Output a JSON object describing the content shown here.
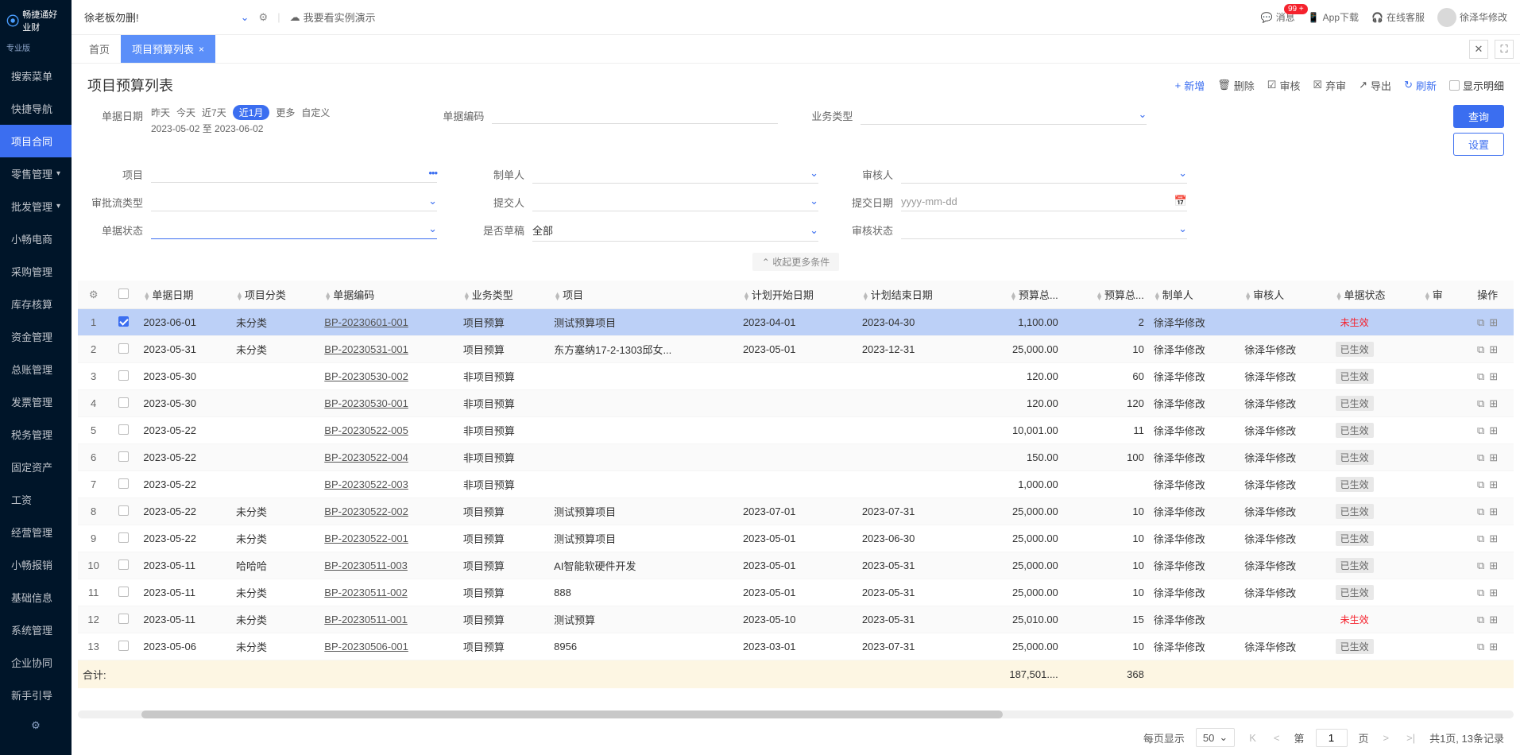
{
  "brand": {
    "name": "畅捷通好业财",
    "edition": "专业版"
  },
  "topbar": {
    "org": "徐老板勿删!",
    "demo_link": "我要看实例演示",
    "message": "消息",
    "message_badge": "99 +",
    "app_download": "App下载",
    "online_service": "在线客服",
    "user": "徐泽华修改"
  },
  "sidebar": [
    {
      "label": "搜索菜单",
      "active": false
    },
    {
      "label": "快捷导航",
      "active": false
    },
    {
      "label": "项目合同",
      "active": true
    },
    {
      "label": "零售管理",
      "active": false,
      "sub": true
    },
    {
      "label": "批发管理",
      "active": false,
      "sub": true
    },
    {
      "label": "小畅电商",
      "active": false
    },
    {
      "label": "采购管理",
      "active": false
    },
    {
      "label": "库存核算",
      "active": false
    },
    {
      "label": "资金管理",
      "active": false
    },
    {
      "label": "总账管理",
      "active": false
    },
    {
      "label": "发票管理",
      "active": false
    },
    {
      "label": "税务管理",
      "active": false
    },
    {
      "label": "固定资产",
      "active": false
    },
    {
      "label": "工资",
      "active": false
    },
    {
      "label": "经营管理",
      "active": false
    },
    {
      "label": "小畅报销",
      "active": false
    },
    {
      "label": "基础信息",
      "active": false
    },
    {
      "label": "系统管理",
      "active": false
    },
    {
      "label": "企业协同",
      "active": false
    },
    {
      "label": "新手引导",
      "active": false
    }
  ],
  "tabs": [
    {
      "label": "首页",
      "active": false
    },
    {
      "label": "项目预算列表",
      "active": true
    }
  ],
  "page": {
    "title": "项目预算列表",
    "actions": {
      "add": "新增",
      "delete": "删除",
      "audit": "审核",
      "abandon": "弃审",
      "export": "导出",
      "refresh": "刷新",
      "detail_check": "显示明细"
    }
  },
  "filter": {
    "labels": {
      "bill_date": "单据日期",
      "bill_code": "单据编码",
      "biz_type": "业务类型",
      "project": "项目",
      "maker": "制单人",
      "auditor": "审核人",
      "flow_type": "审批流类型",
      "submitter": "提交人",
      "submit_date": "提交日期",
      "bill_status": "单据状态",
      "is_draft": "是否草稿",
      "audit_status": "审核状态"
    },
    "date_quick": {
      "yesterday": "昨天",
      "today": "今天",
      "d7": "近7天",
      "m1": "近1月",
      "more": "更多",
      "custom": "自定义"
    },
    "date_range": "2023-05-02 至 2023-06-02",
    "is_draft_value": "全部",
    "submit_date_placeholder": "yyyy-mm-dd",
    "query": "查询",
    "settings": "设置",
    "collapse": "收起更多条件"
  },
  "table": {
    "columns": {
      "bill_date": "单据日期",
      "category": "项目分类",
      "bill_code": "单据编码",
      "biz_type": "业务类型",
      "project": "项目",
      "plan_start": "计划开始日期",
      "plan_end": "计划结束日期",
      "budget_total1": "预算总...",
      "budget_total2": "预算总...",
      "maker": "制单人",
      "auditor": "审核人",
      "status": "单据状态",
      "extra": "审",
      "operate": "操作"
    },
    "rows": [
      {
        "n": 1,
        "sel": true,
        "date": "2023-06-01",
        "cat": "未分类",
        "code": "BP-20230601-001",
        "type": "项目预算",
        "proj": "测试预算项目",
        "start": "2023-04-01",
        "end": "2023-04-30",
        "b1": "1,100.00",
        "b2": "2",
        "maker": "徐泽华修改",
        "aud": "",
        "status": "未生效",
        "sok": false
      },
      {
        "n": 2,
        "date": "2023-05-31",
        "cat": "未分类",
        "code": "BP-20230531-001",
        "type": "项目预算",
        "proj": "东方塞纳17-2-1303邱女...",
        "start": "2023-05-01",
        "end": "2023-12-31",
        "b1": "25,000.00",
        "b2": "10",
        "maker": "徐泽华修改",
        "aud": "徐泽华修改",
        "status": "已生效",
        "sok": true
      },
      {
        "n": 3,
        "date": "2023-05-30",
        "cat": "",
        "code": "BP-20230530-002",
        "type": "非项目预算",
        "proj": "",
        "start": "",
        "end": "",
        "b1": "120.00",
        "b2": "60",
        "maker": "徐泽华修改",
        "aud": "徐泽华修改",
        "status": "已生效",
        "sok": true
      },
      {
        "n": 4,
        "date": "2023-05-30",
        "cat": "",
        "code": "BP-20230530-001",
        "type": "非项目预算",
        "proj": "",
        "start": "",
        "end": "",
        "b1": "120.00",
        "b2": "120",
        "maker": "徐泽华修改",
        "aud": "徐泽华修改",
        "status": "已生效",
        "sok": true
      },
      {
        "n": 5,
        "date": "2023-05-22",
        "cat": "",
        "code": "BP-20230522-005",
        "type": "非项目预算",
        "proj": "",
        "start": "",
        "end": "",
        "b1": "10,001.00",
        "b2": "11",
        "maker": "徐泽华修改",
        "aud": "徐泽华修改",
        "status": "已生效",
        "sok": true
      },
      {
        "n": 6,
        "date": "2023-05-22",
        "cat": "",
        "code": "BP-20230522-004",
        "type": "非项目预算",
        "proj": "",
        "start": "",
        "end": "",
        "b1": "150.00",
        "b2": "100",
        "maker": "徐泽华修改",
        "aud": "徐泽华修改",
        "status": "已生效",
        "sok": true
      },
      {
        "n": 7,
        "date": "2023-05-22",
        "cat": "",
        "code": "BP-20230522-003",
        "type": "非项目预算",
        "proj": "",
        "start": "",
        "end": "",
        "b1": "1,000.00",
        "b2": "",
        "maker": "徐泽华修改",
        "aud": "徐泽华修改",
        "status": "已生效",
        "sok": true
      },
      {
        "n": 8,
        "date": "2023-05-22",
        "cat": "未分类",
        "code": "BP-20230522-002",
        "type": "项目预算",
        "proj": "测试预算项目",
        "start": "2023-07-01",
        "end": "2023-07-31",
        "b1": "25,000.00",
        "b2": "10",
        "maker": "徐泽华修改",
        "aud": "徐泽华修改",
        "status": "已生效",
        "sok": true
      },
      {
        "n": 9,
        "date": "2023-05-22",
        "cat": "未分类",
        "code": "BP-20230522-001",
        "type": "项目预算",
        "proj": "测试预算项目",
        "start": "2023-05-01",
        "end": "2023-06-30",
        "b1": "25,000.00",
        "b2": "10",
        "maker": "徐泽华修改",
        "aud": "徐泽华修改",
        "status": "已生效",
        "sok": true
      },
      {
        "n": 10,
        "date": "2023-05-11",
        "cat": "哈哈哈",
        "code": "BP-20230511-003",
        "type": "项目预算",
        "proj": "AI智能软硬件开发",
        "start": "2023-05-01",
        "end": "2023-05-31",
        "b1": "25,000.00",
        "b2": "10",
        "maker": "徐泽华修改",
        "aud": "徐泽华修改",
        "status": "已生效",
        "sok": true
      },
      {
        "n": 11,
        "date": "2023-05-11",
        "cat": "未分类",
        "code": "BP-20230511-002",
        "type": "项目预算",
        "proj": "888",
        "start": "2023-05-01",
        "end": "2023-05-31",
        "b1": "25,000.00",
        "b2": "10",
        "maker": "徐泽华修改",
        "aud": "徐泽华修改",
        "status": "已生效",
        "sok": true
      },
      {
        "n": 12,
        "date": "2023-05-11",
        "cat": "未分类",
        "code": "BP-20230511-001",
        "type": "项目预算",
        "proj": "测试预算",
        "start": "2023-05-10",
        "end": "2023-05-31",
        "b1": "25,010.00",
        "b2": "15",
        "maker": "徐泽华修改",
        "aud": "",
        "status": "未生效",
        "sok": false
      },
      {
        "n": 13,
        "date": "2023-05-06",
        "cat": "未分类",
        "code": "BP-20230506-001",
        "type": "项目预算",
        "proj": "8956",
        "start": "2023-03-01",
        "end": "2023-07-31",
        "b1": "25,000.00",
        "b2": "10",
        "maker": "徐泽华修改",
        "aud": "徐泽华修改",
        "status": "已生效",
        "sok": true
      }
    ],
    "footer": {
      "label": "合计:",
      "b1": "187,501....",
      "b2": "368"
    }
  },
  "pagination": {
    "per_page_label": "每页显示",
    "per_page": "50",
    "page_label_pre": "第",
    "page": "1",
    "page_label_post": "页",
    "summary": "共1页, 13条记录"
  }
}
